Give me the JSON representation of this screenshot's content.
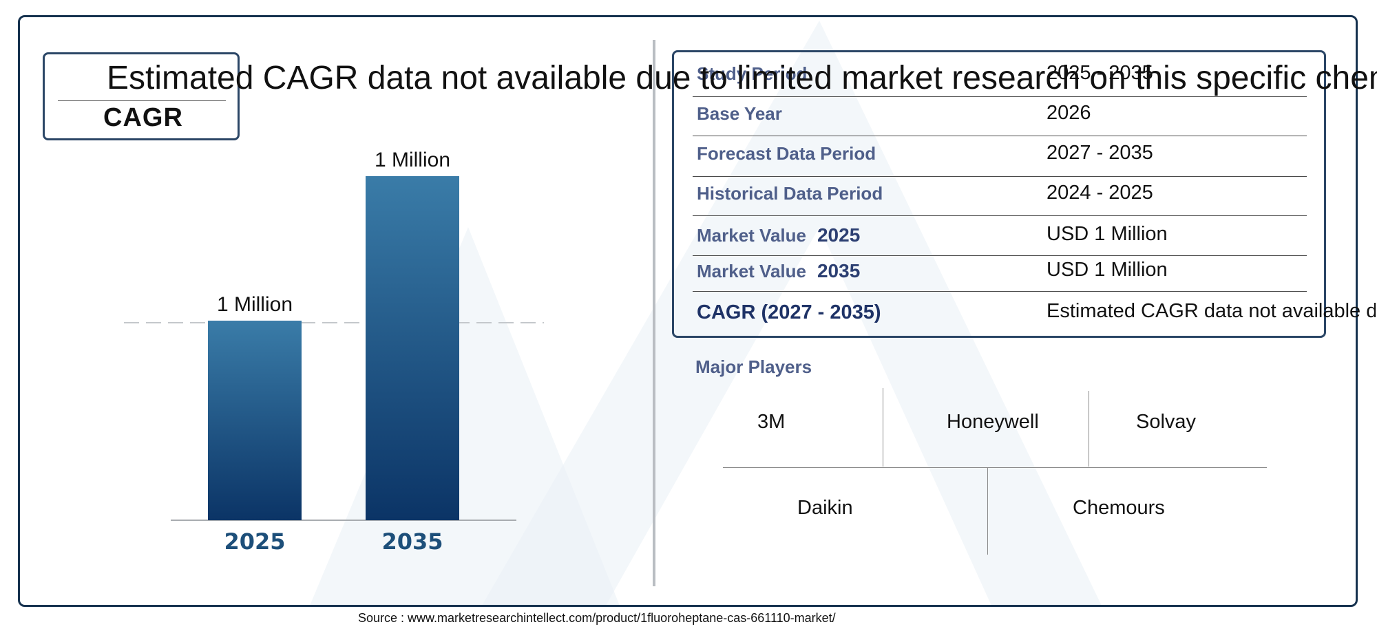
{
  "cagr_box": {
    "label": "CAGR",
    "overflow_text": "Estimated CAGR data not available due to limited market research on this specific chemical"
  },
  "chart_data": {
    "type": "bar",
    "categories": [
      "2025",
      "2035"
    ],
    "values": [
      0.58,
      1.0
    ],
    "value_labels": [
      "1 Million",
      "1 Million"
    ],
    "colors": {
      "top": "#3a7ca8",
      "bottom": "#0b3466"
    }
  },
  "summary": {
    "rows": [
      {
        "label": "Study Period",
        "year": "",
        "value": "2025 - 2035"
      },
      {
        "label": "Base Year",
        "year": "",
        "value": "2026"
      },
      {
        "label": "Forecast Data Period",
        "year": "",
        "value": "2027 - 2035"
      },
      {
        "label": "Historical Data Period",
        "year": "",
        "value": "2024 - 2025"
      },
      {
        "label": "Market Value",
        "year": "2025",
        "value": "USD 1 Million"
      },
      {
        "label": "Market Value",
        "year": "2035",
        "value": "USD 1 Million"
      },
      {
        "label": "CAGR (2027 - 2035)",
        "year": "",
        "value": "Estimated CAGR data not available due to limited market research on this specific chemical"
      }
    ]
  },
  "players": {
    "title": "Major Players",
    "names": [
      "3M",
      "Honeywell",
      "Solvay",
      "Daikin",
      "Chemours"
    ]
  },
  "source": "Source : www.marketresearchintellect.com/product/1fluoroheptane-cas-661110-market/",
  "colors": {
    "frame": "#16324f",
    "label": "#4f5f8a",
    "axis_year": "#1d4f7a"
  }
}
